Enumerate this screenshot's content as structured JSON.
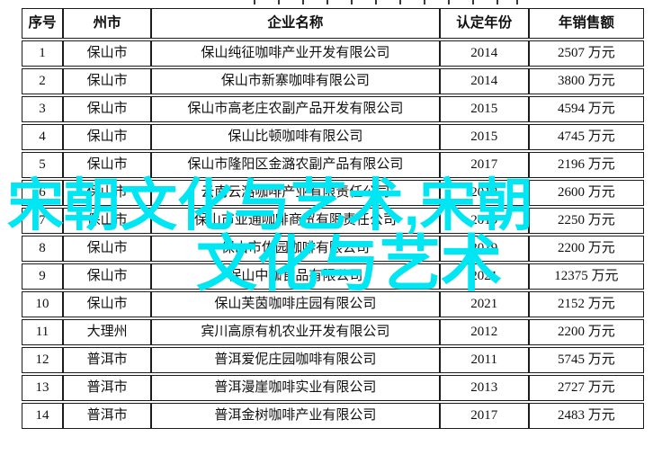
{
  "watermark": {
    "line1": "宋朝文化与艺术,宋朝",
    "line2": "文化与艺术",
    "color": "#00e6f2"
  },
  "table": {
    "headers": [
      "序号",
      "州市",
      "企业名称",
      "认定年份",
      "年销售额"
    ],
    "rows": [
      [
        "1",
        "保山市",
        "保山纯征咖啡产业开发有限公司",
        "2014",
        "2507 万元"
      ],
      [
        "2",
        "保山市",
        "保山市新寨咖啡有限公司",
        "2014",
        "3800 万元"
      ],
      [
        "3",
        "保山市",
        "保山市高老庄农副产品开发有限公司",
        "2015",
        "4594 万元"
      ],
      [
        "4",
        "保山市",
        "保山比顿咖啡有限公司",
        "2015",
        "4745 万元"
      ],
      [
        "5",
        "保山市",
        "保山市隆阳区金潞农副产品有限公司",
        "2017",
        "2196 万元"
      ],
      [
        "6",
        "保山市",
        "云南云潞咖啡产业有限责任公司",
        "2018",
        "2600 万元"
      ],
      [
        "7",
        "保山市",
        "保山市亚通咖啡商贸有限责任公司",
        "2019",
        "2250 万元"
      ],
      [
        "8",
        "保山市",
        "保山市佐园咖啡有限公司",
        "2019",
        "2200 万元"
      ],
      [
        "9",
        "保山市",
        "保山中咖食品有限公司",
        "2021",
        "12375 万元"
      ],
      [
        "10",
        "保山市",
        "保山芙茵咖啡庄园有限公司",
        "2021",
        "2152 万元"
      ],
      [
        "11",
        "大理州",
        "宾川高原有机农业开发有限公司",
        "2012",
        "2200 万元"
      ],
      [
        "12",
        "普洱市",
        "普洱爱伲庄园咖啡有限公司",
        "2011",
        "5745 万元"
      ],
      [
        "13",
        "普洱市",
        "普洱漫崖咖啡实业有限公司",
        "2013",
        "2727 万元"
      ],
      [
        "14",
        "普洱市",
        "普洱金树咖啡产业有限公司",
        "2017",
        "2483 万元"
      ]
    ]
  }
}
